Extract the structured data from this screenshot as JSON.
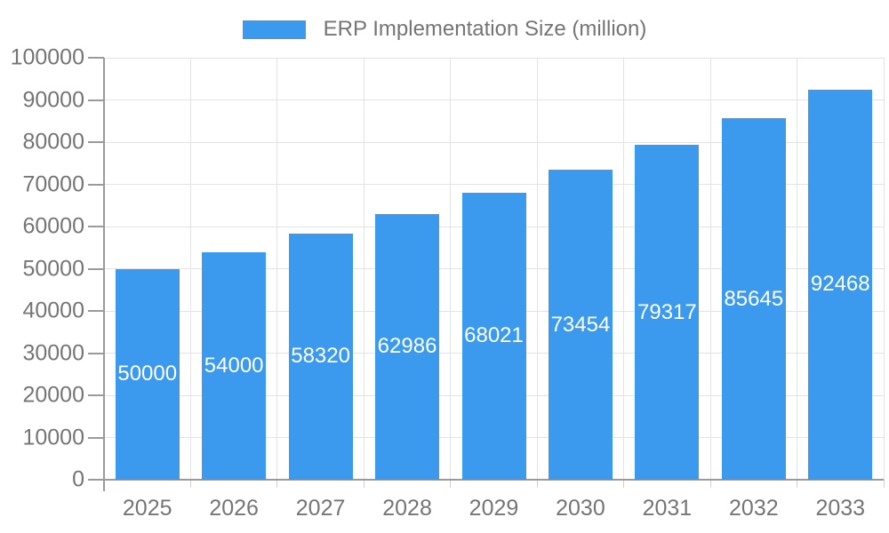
{
  "chart_data": {
    "type": "bar",
    "title": "ERP Implementation Size (million)",
    "categories": [
      "2025",
      "2026",
      "2027",
      "2028",
      "2029",
      "2030",
      "2031",
      "2032",
      "2033"
    ],
    "series": [
      {
        "name": "ERP Implementation Size (million)",
        "values": [
          50000,
          54000,
          58320,
          62986,
          68021,
          73454,
          79317,
          85645,
          92468
        ]
      }
    ],
    "ylim": [
      0,
      100000
    ],
    "ytick_step": 10000,
    "ytick_labels": [
      "0",
      "10000",
      "20000",
      "30000",
      "40000",
      "50000",
      "60000",
      "70000",
      "80000",
      "90000",
      "100000"
    ],
    "grid": true,
    "legend_position": "top",
    "colors": {
      "bar": "#3b9aee",
      "value_label": "#ffffff",
      "axis_text": "#757575",
      "axis_line": "#9a9a9a",
      "gridline": "#e3e3e3"
    }
  }
}
